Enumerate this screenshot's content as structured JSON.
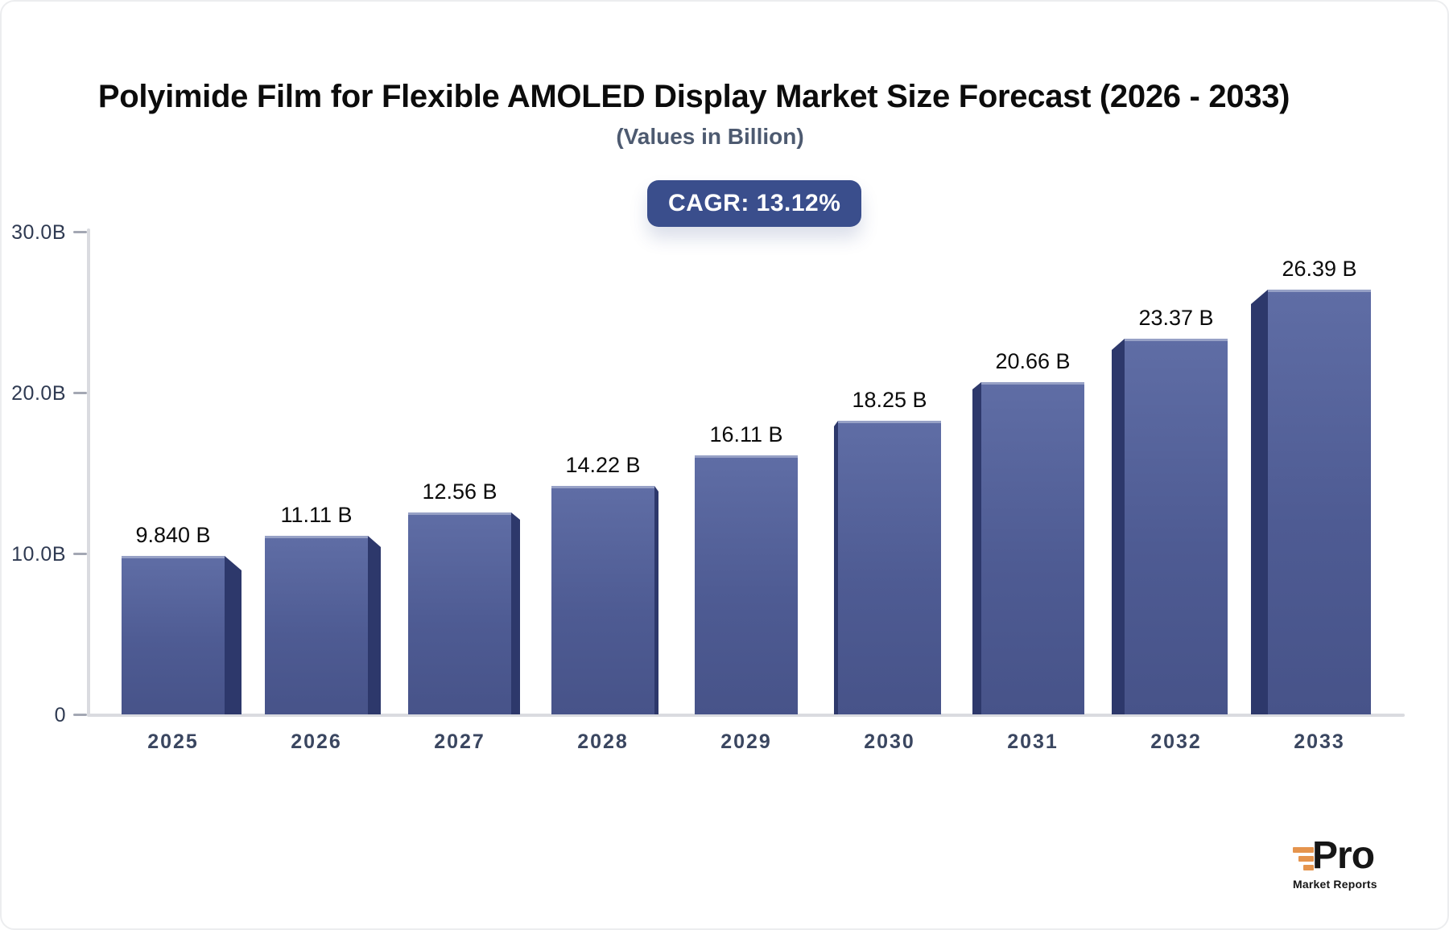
{
  "header": {
    "title": "Polyimide Film for Flexible AMOLED Display Market Size Forecast (2026 - 2033)",
    "subtitle": "(Values in Billion)",
    "cagr_label": "CAGR: 13.12%"
  },
  "chart_data": {
    "type": "bar",
    "title": "Polyimide Film for Flexible AMOLED Display Market Size Forecast (2026 - 2033)",
    "subtitle": "(Values in Billion)",
    "cagr": "13.12%",
    "categories": [
      "2025",
      "2026",
      "2027",
      "2028",
      "2029",
      "2030",
      "2031",
      "2032",
      "2033"
    ],
    "values": [
      9.84,
      11.11,
      12.56,
      14.22,
      16.11,
      18.25,
      20.66,
      23.37,
      26.39
    ],
    "value_labels": [
      "9.840 B",
      "11.11 B",
      "12.56 B",
      "14.22 B",
      "16.11 B",
      "18.25 B",
      "20.66 B",
      "23.37 B",
      "26.39 B"
    ],
    "xlabel": "",
    "ylabel": "",
    "ylim": [
      0,
      30
    ],
    "yticks": [
      {
        "label": "30.0B",
        "value": 30
      },
      {
        "label": "20.0B",
        "value": 20
      },
      {
        "label": "10.0B",
        "value": 10
      },
      {
        "label": "0",
        "value": 0
      }
    ],
    "grid": false,
    "legend": false,
    "style": "3d-perspective-bars, value labels above bars"
  },
  "colors": {
    "title_color": "#0c0c0c",
    "subtitle_color": "#4d5a70",
    "badge_bg": "#3a4e8c",
    "bar_face_top": "#5f6da5",
    "bar_face_bottom": "#475389",
    "bar_side": "#2d386b",
    "bar_top_edge": "#97a1c6",
    "axis_line": "#dadbe0",
    "tick_text": "#2f3a52",
    "year_text": "#3a4660",
    "value_text": "#0b0b0b",
    "logo_orange": "#e5944d"
  },
  "logo": {
    "name": "Pro",
    "subtext": "Market Reports"
  }
}
